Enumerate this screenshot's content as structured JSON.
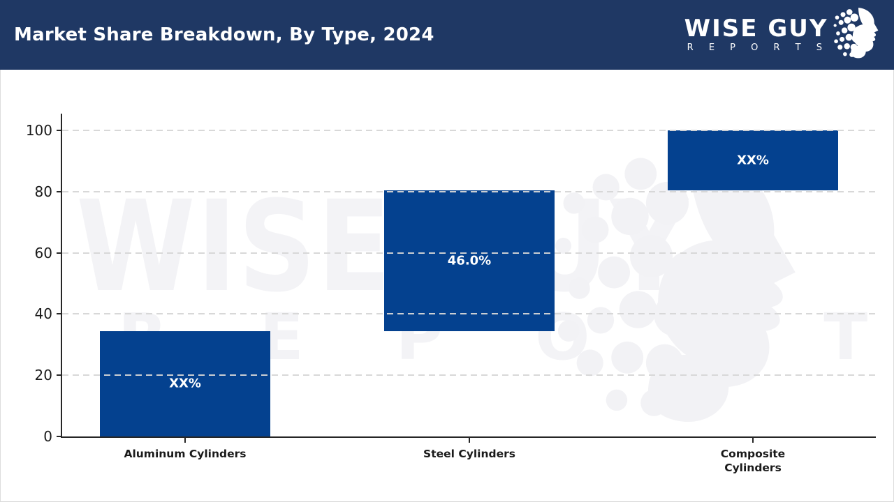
{
  "header": {
    "title": "Market Share Breakdown, By Type, 2024",
    "brand": {
      "line1": "WISE GUY",
      "line2": "R E P O R T S",
      "icon": "wiseguy-dotted-face-profile"
    },
    "colors": {
      "background": "#1F3864",
      "text": "#FFFFFF"
    }
  },
  "watermark": {
    "line1": "WISE GUY",
    "line2": "R E P O R T S"
  },
  "chart_data": {
    "type": "bar",
    "subtype": "floating-segment-waterfall",
    "title": "Market Share Breakdown, By Type, 2024",
    "categories": [
      "Aluminum Cylinders",
      "Steel Cylinders",
      "Composite\nCylinders"
    ],
    "bars": [
      {
        "category": "Aluminum Cylinders",
        "start": 0,
        "end": 34.5,
        "value_label": "XX%"
      },
      {
        "category": "Steel Cylinders",
        "start": 34.5,
        "end": 80.5,
        "value_label": "46.0%"
      },
      {
        "category": "Composite Cylinders",
        "start": 80.5,
        "end": 100,
        "value_label": "XX%"
      }
    ],
    "xlabel": "",
    "ylabel": "",
    "ylim": [
      0,
      105
    ],
    "yticks": [
      0,
      20,
      40,
      60,
      80,
      100
    ],
    "grid": "horizontal-dashed",
    "legend": "none",
    "colors": {
      "bar": "#04418F",
      "bar_label": "#FFFFFF",
      "grid": "#D9D9D9",
      "axis": "#262626",
      "tick_label": "#1A1A1A"
    }
  }
}
